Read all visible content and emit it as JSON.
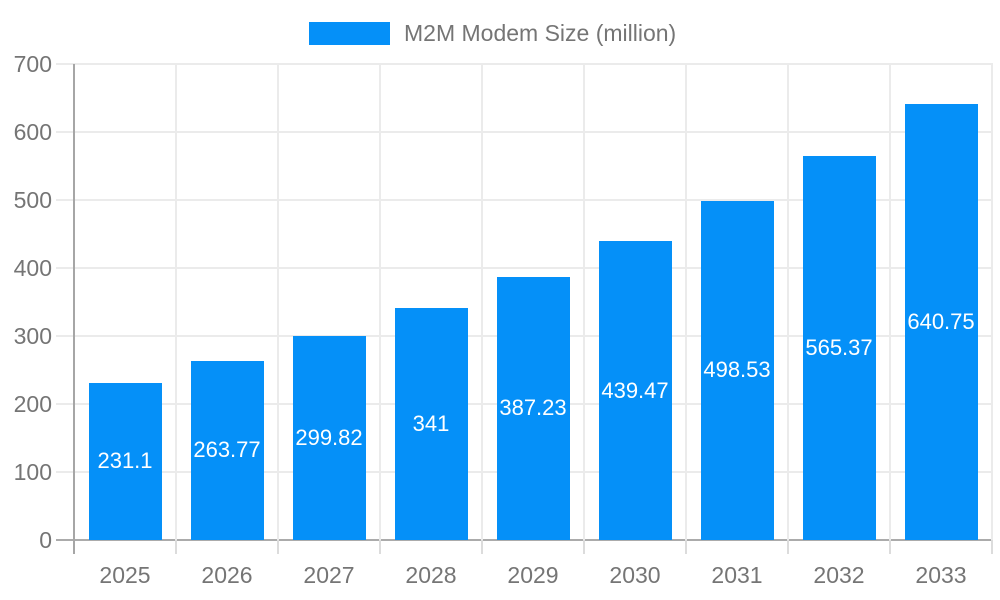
{
  "chart_data": {
    "type": "bar",
    "title": "M2M Modem Size (million)",
    "legend_position": "top",
    "categories": [
      "2025",
      "2026",
      "2027",
      "2028",
      "2029",
      "2030",
      "2031",
      "2032",
      "2033"
    ],
    "values": [
      231.1,
      263.77,
      299.82,
      341,
      387.23,
      439.47,
      498.53,
      565.37,
      640.75
    ],
    "xlabel": "",
    "ylabel": "",
    "ylim": [
      0,
      700
    ],
    "ytick_step": 100,
    "yticks": [
      0,
      100,
      200,
      300,
      400,
      500,
      600,
      700
    ],
    "grid": "both",
    "value_label_position": "center-inside"
  },
  "colors": {
    "bar": "#0590f8",
    "axis_text": "#757575",
    "grid_line": "#ebebeb",
    "tick_line": "#dcdcdc",
    "axis_line": "#a6a6a6",
    "baseline": "#ababab",
    "value_label": "#ffffff",
    "background": "#ffffff"
  }
}
